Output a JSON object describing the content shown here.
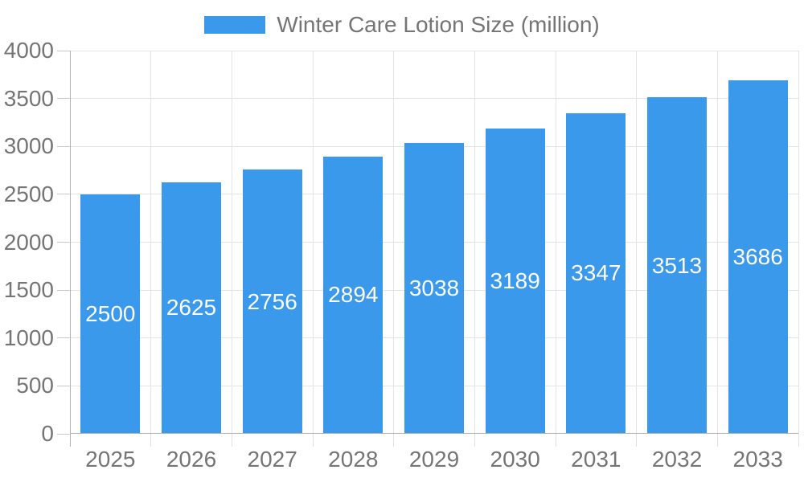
{
  "chart_data": {
    "type": "bar",
    "title": "Winter Care Lotion Size (million)",
    "categories": [
      "2025",
      "2026",
      "2027",
      "2028",
      "2029",
      "2030",
      "2031",
      "2032",
      "2033"
    ],
    "values": [
      2500,
      2625,
      2756,
      2894,
      3038,
      3189,
      3347,
      3513,
      3686
    ],
    "xlabel": "",
    "ylabel": "",
    "ylim": [
      0,
      4000
    ],
    "yticks": [
      0,
      500,
      1000,
      1500,
      2000,
      2500,
      3000,
      3500,
      4000
    ],
    "grid": true,
    "legend_position": "top",
    "value_labels_position": "inside-center"
  },
  "colors": {
    "bar_fill": "#3b99eb",
    "grid_line": "#e4e4e4",
    "axis_line": "#b3b3b3",
    "y_tick_line": "#c8c8c8",
    "x_tick_line": "#e0e0e0",
    "axis_text": "#757575",
    "legend_text": "#757575",
    "bar_label_text": "#ffffff",
    "background": "#ffffff"
  }
}
